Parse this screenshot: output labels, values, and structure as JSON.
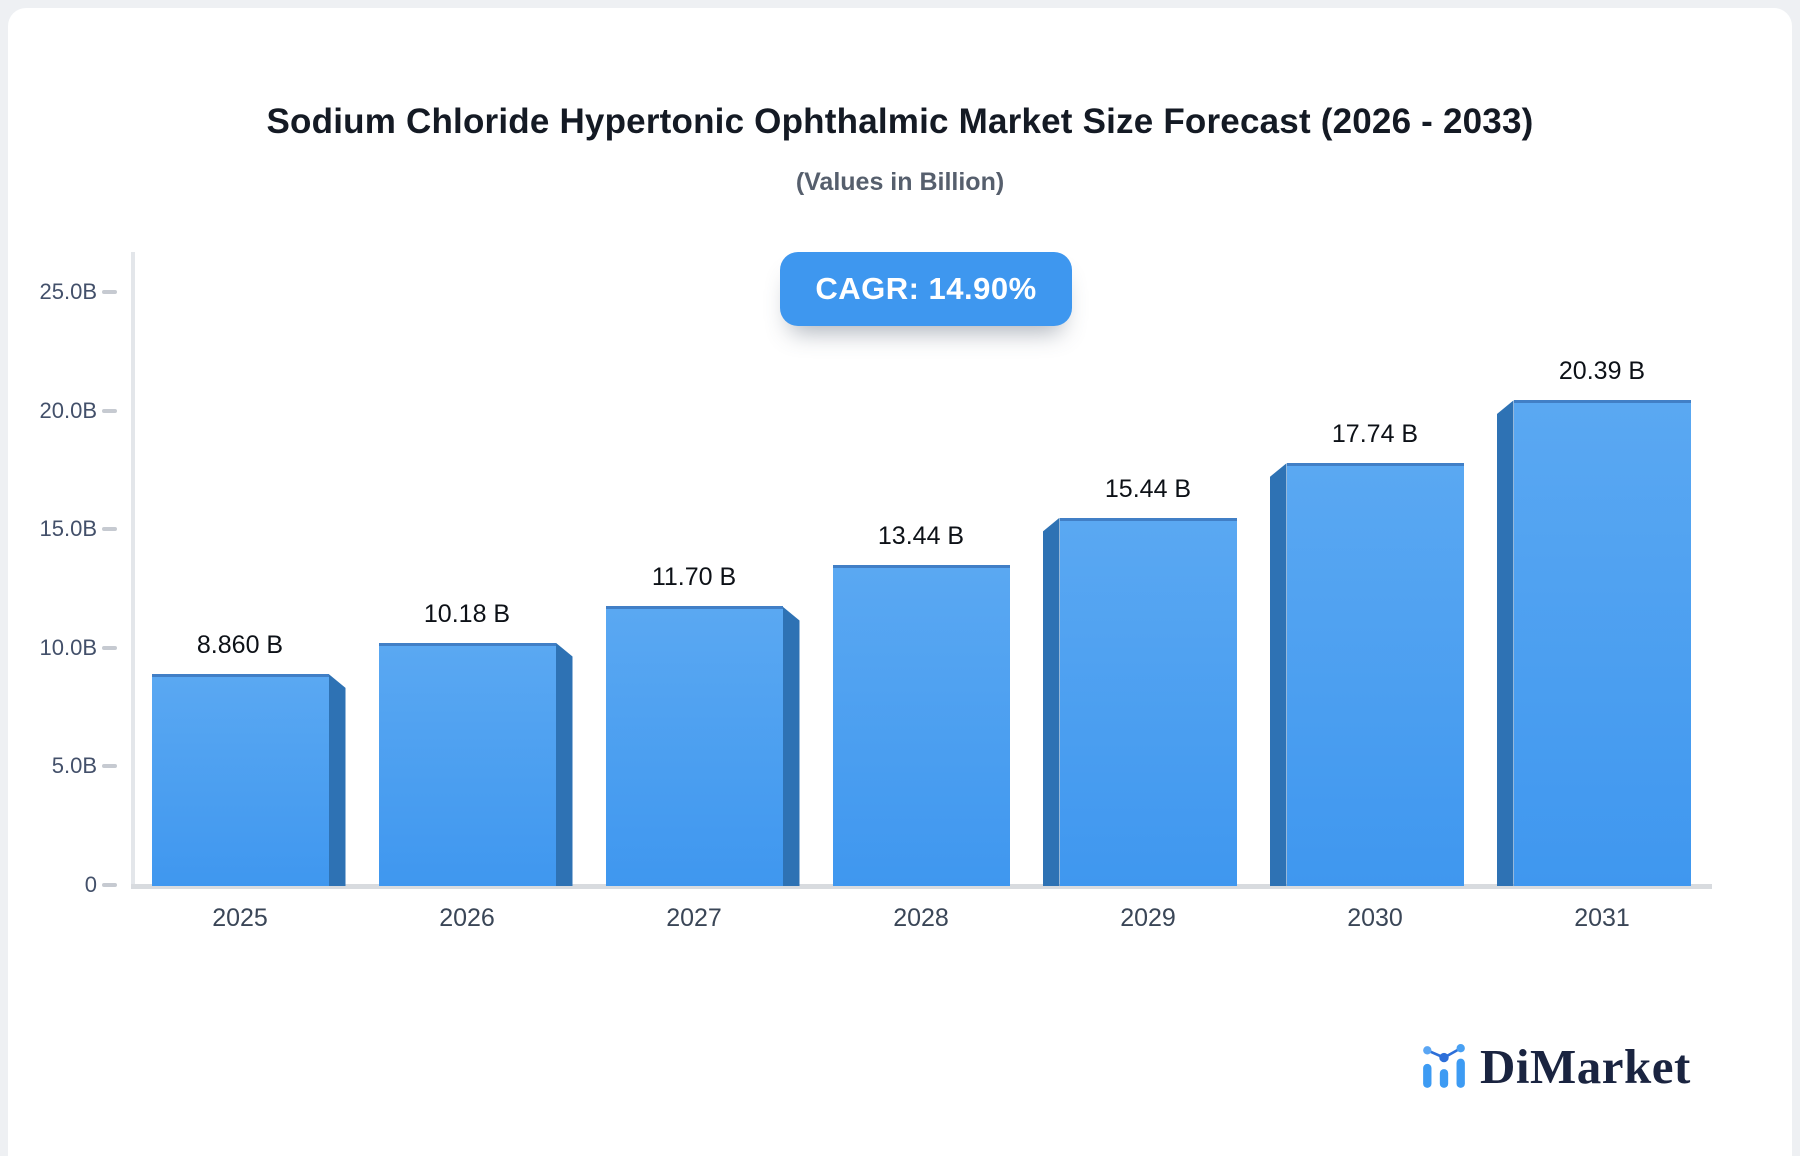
{
  "page": {
    "title": "Sodium Chloride Hypertonic Ophthalmic Market Size Forecast (2026 - 2033)",
    "subtitle": "(Values in Billion)",
    "cagr_badge_label": "CAGR: 14.90%"
  },
  "chart_data": {
    "type": "bar",
    "title": "Sodium Chloride Hypertonic Ophthalmic Market Size Forecast (2026 - 2033)",
    "subtitle": "(Values in Billion)",
    "cagr_annotation": "CAGR: 14.90%",
    "categories": [
      "2025",
      "2026",
      "2027",
      "2028",
      "2029",
      "2030",
      "2031"
    ],
    "values": [
      8.86,
      10.18,
      11.7,
      13.44,
      15.44,
      17.74,
      20.39
    ],
    "value_labels": [
      "8.860 B",
      "10.18 B",
      "11.70 B",
      "13.44 B",
      "15.44 B",
      "17.74 B",
      "20.39 B"
    ],
    "xlabel": "",
    "ylabel": "",
    "ylim": [
      0,
      25
    ],
    "ytick_values": [
      0,
      5,
      10,
      15,
      20,
      25
    ],
    "ytick_labels": [
      "0",
      "5.0B",
      "10.0B",
      "15.0B",
      "20.0B",
      "25.0B"
    ],
    "grid": false,
    "legend": "none",
    "bar_style_3d": true,
    "colors": {
      "bar_face_top": "#5aa8f2",
      "bar_face_bottom": "#3f97ef",
      "bar_top_edge": "#417fc6",
      "bar_side": "#2e72b4",
      "axis_line": "#e3e6ea",
      "baseline": "#d8dbdf",
      "tick_text": "#43506a",
      "category_text": "#3a4657",
      "value_text": "#0d1117",
      "accent_blue": "#3e97ef"
    }
  },
  "branding": {
    "logo_text": "DiMarket",
    "logo_icon": "bar-chart-trend-icon",
    "logo_text_color": "#1a2440",
    "logo_icon_blue": "#3d9bf3",
    "logo_icon_dark_blue": "#2d6fd9"
  }
}
